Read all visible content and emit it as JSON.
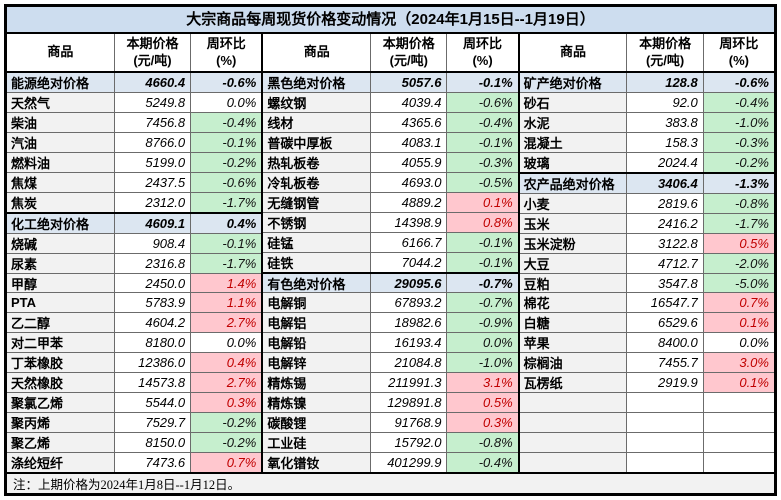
{
  "chart_data": {
    "type": "table",
    "title": "大宗商品每周现货价格变动情况（2024年1月15日--1月19日）",
    "headers": {
      "commodity": "商品",
      "price_line1": "本期价格",
      "price_line2": "(元/吨)",
      "pct_line1": "周环比",
      "pct_line2": "(%)"
    },
    "footnote": "注：上期价格为2024年1月8日--1月12日。",
    "colors": {
      "title_bg": "#cdddef",
      "category_row_bg": "#dce6f1",
      "decline_cell_bg": "#c6efce",
      "rise_cell_bg": "#ffc7ce",
      "rise_text": "#c00000",
      "name_column_bg": "#f2f2f2",
      "border": "#000000"
    },
    "groups": [
      {
        "rows": [
          {
            "name": "能源绝对价格",
            "price": "4660.4",
            "pct": "-0.6%",
            "kind": "category"
          },
          {
            "name": "天然气",
            "price": "5249.8",
            "pct": "0.0%",
            "kind": "flat"
          },
          {
            "name": "柴油",
            "price": "7456.8",
            "pct": "-0.4%",
            "kind": "down"
          },
          {
            "name": "汽油",
            "price": "8766.0",
            "pct": "-0.1%",
            "kind": "down"
          },
          {
            "name": "燃料油",
            "price": "5199.0",
            "pct": "-0.2%",
            "kind": "down"
          },
          {
            "name": "焦煤",
            "price": "2437.5",
            "pct": "-0.6%",
            "kind": "down"
          },
          {
            "name": "焦炭",
            "price": "2312.0",
            "pct": "-1.7%",
            "kind": "down"
          },
          {
            "name": "化工绝对价格",
            "price": "4609.1",
            "pct": "0.4%",
            "kind": "category"
          },
          {
            "name": "烧碱",
            "price": "908.4",
            "pct": "-0.1%",
            "kind": "down"
          },
          {
            "name": "尿素",
            "price": "2316.8",
            "pct": "-1.7%",
            "kind": "down"
          },
          {
            "name": "甲醇",
            "price": "2450.0",
            "pct": "1.4%",
            "kind": "up"
          },
          {
            "name": "PTA",
            "price": "5783.9",
            "pct": "1.1%",
            "kind": "up"
          },
          {
            "name": "乙二醇",
            "price": "4604.2",
            "pct": "2.7%",
            "kind": "up"
          },
          {
            "name": "对二甲苯",
            "price": "8180.0",
            "pct": "0.0%",
            "kind": "flat"
          },
          {
            "name": "丁苯橡胶",
            "price": "12386.0",
            "pct": "0.4%",
            "kind": "up"
          },
          {
            "name": "天然橡胶",
            "price": "14573.8",
            "pct": "2.7%",
            "kind": "up"
          },
          {
            "name": "聚氯乙烯",
            "price": "5544.0",
            "pct": "0.3%",
            "kind": "up"
          },
          {
            "name": "聚丙烯",
            "price": "7529.7",
            "pct": "-0.2%",
            "kind": "down"
          },
          {
            "name": "聚乙烯",
            "price": "8150.0",
            "pct": "-0.2%",
            "kind": "down"
          },
          {
            "name": "涤纶短纤",
            "price": "7473.6",
            "pct": "0.7%",
            "kind": "up"
          }
        ]
      },
      {
        "rows": [
          {
            "name": "黑色绝对价格",
            "price": "5057.6",
            "pct": "-0.1%",
            "kind": "category"
          },
          {
            "name": "螺纹钢",
            "price": "4039.4",
            "pct": "-0.6%",
            "kind": "down"
          },
          {
            "name": "线材",
            "price": "4365.6",
            "pct": "-0.4%",
            "kind": "down"
          },
          {
            "name": "普碳中厚板",
            "price": "4083.1",
            "pct": "-0.1%",
            "kind": "down"
          },
          {
            "name": "热轧板卷",
            "price": "4055.9",
            "pct": "-0.3%",
            "kind": "down"
          },
          {
            "name": "冷轧板卷",
            "price": "4693.0",
            "pct": "-0.5%",
            "kind": "down"
          },
          {
            "name": "无缝钢管",
            "price": "4889.2",
            "pct": "0.1%",
            "kind": "up"
          },
          {
            "name": "不锈钢",
            "price": "14398.9",
            "pct": "0.8%",
            "kind": "up"
          },
          {
            "name": "硅锰",
            "price": "6166.7",
            "pct": "-0.1%",
            "kind": "down"
          },
          {
            "name": "硅铁",
            "price": "7044.2",
            "pct": "-0.1%",
            "kind": "down"
          },
          {
            "name": "有色绝对价格",
            "price": "29095.6",
            "pct": "-0.7%",
            "kind": "category"
          },
          {
            "name": "电解铜",
            "price": "67893.2",
            "pct": "-0.7%",
            "kind": "down"
          },
          {
            "name": "电解铝",
            "price": "18982.6",
            "pct": "-0.9%",
            "kind": "down"
          },
          {
            "name": "电解铅",
            "price": "16193.4",
            "pct": "0.0%",
            "kind": "down"
          },
          {
            "name": "电解锌",
            "price": "21084.8",
            "pct": "-1.0%",
            "kind": "down"
          },
          {
            "name": "精炼锡",
            "price": "211991.3",
            "pct": "3.1%",
            "kind": "up"
          },
          {
            "name": "精炼镍",
            "price": "129891.8",
            "pct": "0.5%",
            "kind": "up"
          },
          {
            "name": "碳酸锂",
            "price": "91768.9",
            "pct": "0.3%",
            "kind": "up"
          },
          {
            "name": "工业硅",
            "price": "15792.0",
            "pct": "-0.8%",
            "kind": "down"
          },
          {
            "name": "氧化镨钕",
            "price": "401299.9",
            "pct": "-0.4%",
            "kind": "down"
          }
        ]
      },
      {
        "rows": [
          {
            "name": "矿产绝对价格",
            "price": "128.8",
            "pct": "-0.6%",
            "kind": "category"
          },
          {
            "name": "砂石",
            "price": "92.0",
            "pct": "-0.4%",
            "kind": "down"
          },
          {
            "name": "水泥",
            "price": "383.8",
            "pct": "-1.0%",
            "kind": "down"
          },
          {
            "name": "混凝土",
            "price": "158.3",
            "pct": "-0.3%",
            "kind": "down"
          },
          {
            "name": "玻璃",
            "price": "2024.4",
            "pct": "-0.2%",
            "kind": "down"
          },
          {
            "name": "农产品绝对价格",
            "price": "3406.4",
            "pct": "-1.3%",
            "kind": "category"
          },
          {
            "name": "小麦",
            "price": "2819.6",
            "pct": "-0.8%",
            "kind": "down"
          },
          {
            "name": "玉米",
            "price": "2416.2",
            "pct": "-1.7%",
            "kind": "down"
          },
          {
            "name": "玉米淀粉",
            "price": "3122.8",
            "pct": "0.5%",
            "kind": "up"
          },
          {
            "name": "大豆",
            "price": "4712.7",
            "pct": "-2.0%",
            "kind": "down"
          },
          {
            "name": "豆粕",
            "price": "3547.8",
            "pct": "-5.0%",
            "kind": "down"
          },
          {
            "name": "棉花",
            "price": "16547.7",
            "pct": "0.7%",
            "kind": "up"
          },
          {
            "name": "白糖",
            "price": "6529.6",
            "pct": "0.1%",
            "kind": "up"
          },
          {
            "name": "苹果",
            "price": "8400.0",
            "pct": "0.0%",
            "kind": "flat"
          },
          {
            "name": "棕榈油",
            "price": "7455.7",
            "pct": "3.0%",
            "kind": "up"
          },
          {
            "name": "瓦楞纸",
            "price": "2919.9",
            "pct": "0.1%",
            "kind": "up"
          },
          {
            "name": "",
            "price": "",
            "pct": "",
            "kind": "empty"
          },
          {
            "name": "",
            "price": "",
            "pct": "",
            "kind": "empty"
          },
          {
            "name": "",
            "price": "",
            "pct": "",
            "kind": "empty"
          },
          {
            "name": "",
            "price": "",
            "pct": "",
            "kind": "empty"
          }
        ]
      }
    ]
  }
}
